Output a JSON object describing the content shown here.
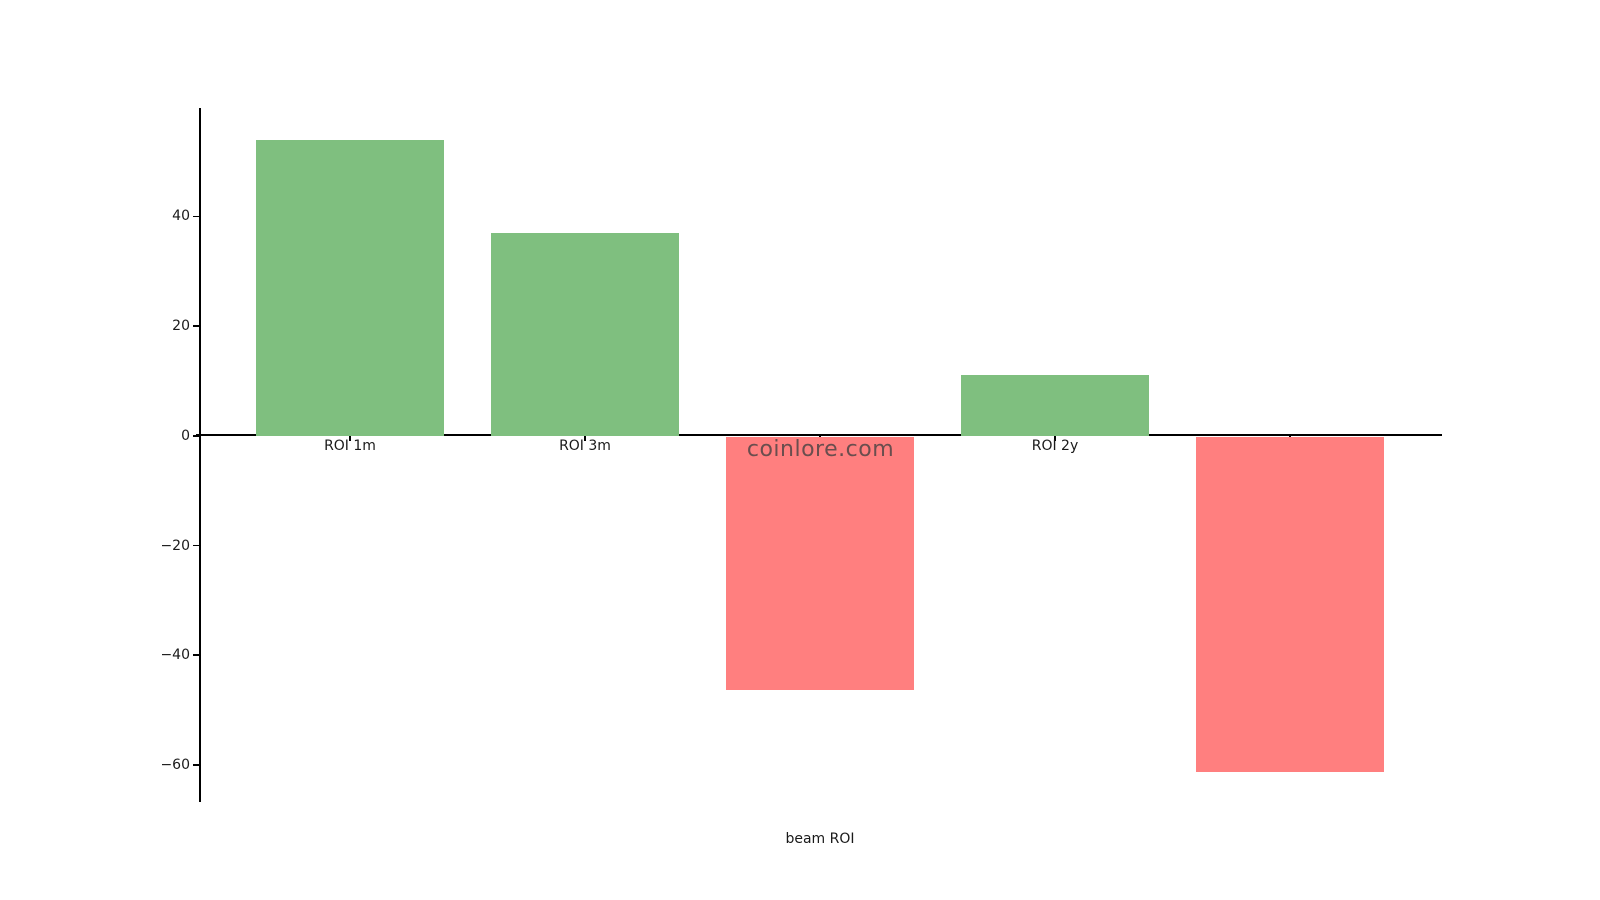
{
  "watermark": {
    "text": "coinlore.com"
  },
  "chart_data": {
    "type": "bar",
    "title": "",
    "xlabel": "beam ROI",
    "ylabel": "",
    "categories": [
      "ROI 1m",
      "ROI 3m",
      "",
      "ROI 2y",
      ""
    ],
    "values": [
      54,
      37,
      -46,
      11,
      -61
    ],
    "yticks": [
      40,
      20,
      0,
      -20,
      -40,
      -60
    ],
    "ylim": [
      -66.75,
      59.75
    ],
    "grid": false,
    "legend": "none",
    "colors": {
      "positive_bar": "#7fbf7f",
      "negative_bar": "#ff7f7f",
      "axis": "#000000",
      "tick_label": "#1a1a1a",
      "watermark_text": "rgba(64,64,64,0.78)"
    }
  }
}
